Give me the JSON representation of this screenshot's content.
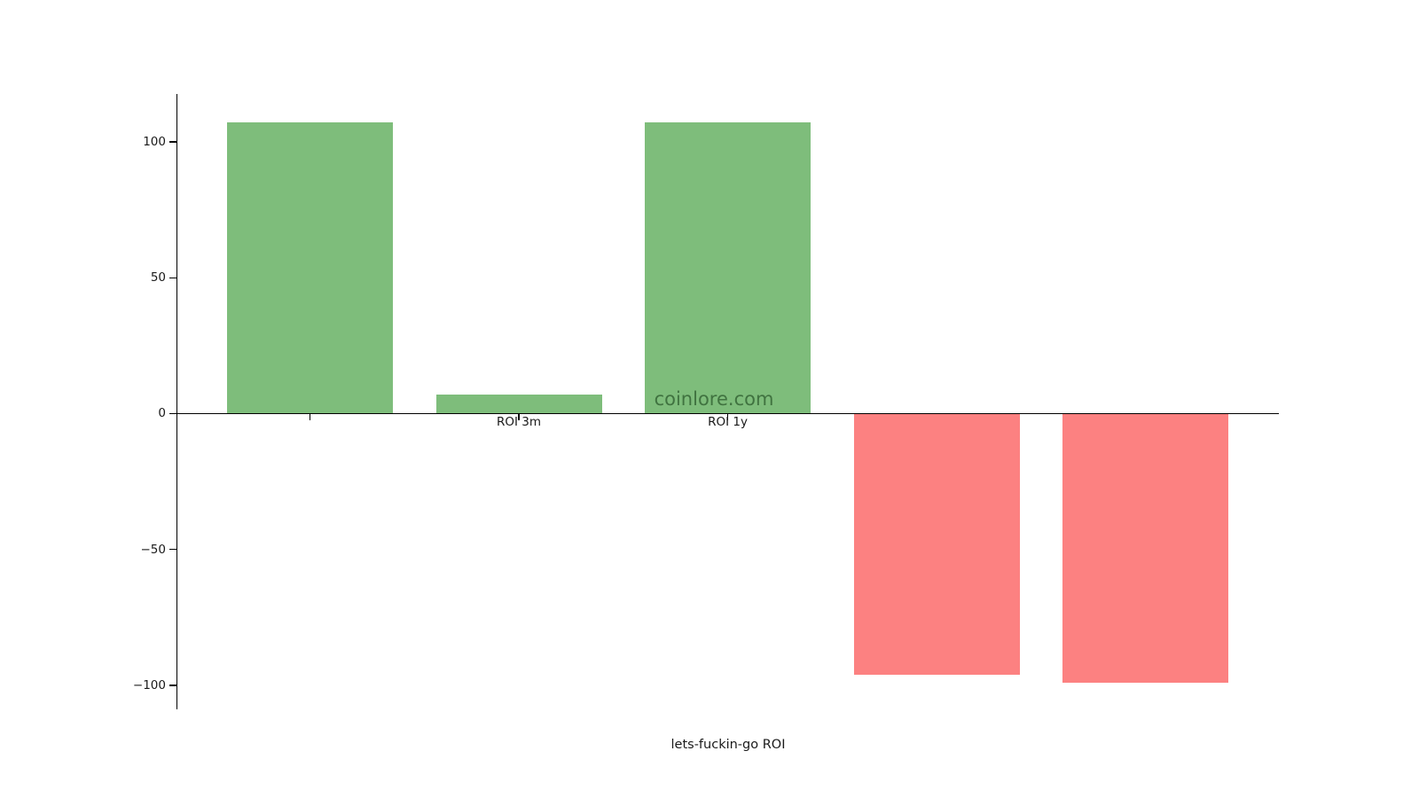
{
  "chart_data": {
    "type": "bar",
    "title": "",
    "xlabel": "lets-fuckin-go ROI",
    "watermark": "coinlore.com",
    "categories": [
      "",
      "ROI 3m",
      "ROI 1y",
      "",
      ""
    ],
    "values": [
      107,
      7,
      107,
      -96,
      -99
    ],
    "bars": [
      {
        "label": "",
        "value": 107,
        "color": "#7ebd7b",
        "tick_visible": true
      },
      {
        "label": "ROI 3m",
        "value": 7,
        "color": "#7ebd7b",
        "tick_visible": true
      },
      {
        "label": "ROI 1y",
        "value": 107,
        "color": "#7ebd7b",
        "tick_visible": true
      },
      {
        "label": "",
        "value": -96,
        "color": "#fc8181",
        "tick_visible": false
      },
      {
        "label": "",
        "value": -99,
        "color": "#fc8181",
        "tick_visible": false
      }
    ],
    "yticks": [
      {
        "label": "100",
        "value": 100
      },
      {
        "label": "50",
        "value": 50
      },
      {
        "label": "0",
        "value": 0
      },
      {
        "label": "−50",
        "value": -50
      },
      {
        "label": "−100",
        "value": -100
      }
    ],
    "ylim": [
      -108.8,
      117.6
    ],
    "grid": false,
    "legend": "none",
    "colors": {
      "positive": "#7ebd7b",
      "negative": "#fc8181",
      "axis": "#000000",
      "text": "#1a1a1a",
      "watermark": "#3a6b3a",
      "background": "#ffffff"
    }
  }
}
